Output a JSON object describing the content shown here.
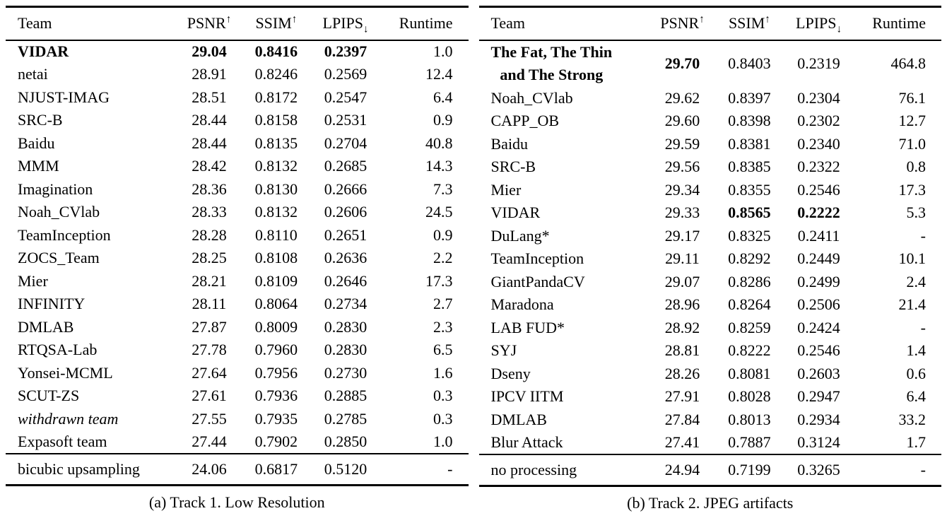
{
  "colors": {
    "text": "#000000",
    "background": "#ffffff"
  },
  "tables": [
    {
      "caption": "(a) Track 1. Low Resolution",
      "columns": [
        {
          "label": "Team",
          "arrow": "",
          "arrow_pos": ""
        },
        {
          "label": "PSNR",
          "arrow": "↑",
          "arrow_pos": "sup"
        },
        {
          "label": "SSIM",
          "arrow": "↑",
          "arrow_pos": "sup"
        },
        {
          "label": "LPIPS",
          "arrow": "↓",
          "arrow_pos": "sub"
        },
        {
          "label": "Runtime",
          "arrow": "",
          "arrow_pos": ""
        }
      ],
      "rows": [
        {
          "team": "VIDAR",
          "psnr": "29.04",
          "ssim": "0.8416",
          "lpips": "0.2397",
          "runtime": "1.0",
          "bold": [
            "team",
            "psnr",
            "ssim",
            "lpips"
          ]
        },
        {
          "team": "netai",
          "psnr": "28.91",
          "ssim": "0.8246",
          "lpips": "0.2569",
          "runtime": "12.4"
        },
        {
          "team": "NJUST-IMAG",
          "psnr": "28.51",
          "ssim": "0.8172",
          "lpips": "0.2547",
          "runtime": "6.4"
        },
        {
          "team": "SRC-B",
          "psnr": "28.44",
          "ssim": "0.8158",
          "lpips": "0.2531",
          "runtime": "0.9"
        },
        {
          "team": "Baidu",
          "psnr": "28.44",
          "ssim": "0.8135",
          "lpips": "0.2704",
          "runtime": "40.8"
        },
        {
          "team": "MMM",
          "psnr": "28.42",
          "ssim": "0.8132",
          "lpips": "0.2685",
          "runtime": "14.3"
        },
        {
          "team": "Imagination",
          "psnr": "28.36",
          "ssim": "0.8130",
          "lpips": "0.2666",
          "runtime": "7.3"
        },
        {
          "team": "Noah_CVlab",
          "psnr": "28.33",
          "ssim": "0.8132",
          "lpips": "0.2606",
          "runtime": "24.5"
        },
        {
          "team": "TeamInception",
          "psnr": "28.28",
          "ssim": "0.8110",
          "lpips": "0.2651",
          "runtime": "0.9"
        },
        {
          "team": "ZOCS_Team",
          "psnr": "28.25",
          "ssim": "0.8108",
          "lpips": "0.2636",
          "runtime": "2.2"
        },
        {
          "team": "Mier",
          "psnr": "28.21",
          "ssim": "0.8109",
          "lpips": "0.2646",
          "runtime": "17.3"
        },
        {
          "team": "INFINITY",
          "psnr": "28.11",
          "ssim": "0.8064",
          "lpips": "0.2734",
          "runtime": "2.7"
        },
        {
          "team": "DMLAB",
          "psnr": "27.87",
          "ssim": "0.8009",
          "lpips": "0.2830",
          "runtime": "2.3"
        },
        {
          "team": "RTQSA-Lab",
          "psnr": "27.78",
          "ssim": "0.7960",
          "lpips": "0.2830",
          "runtime": "6.5"
        },
        {
          "team": "Yonsei-MCML",
          "psnr": "27.64",
          "ssim": "0.7956",
          "lpips": "0.2730",
          "runtime": "1.6"
        },
        {
          "team": "SCUT-ZS",
          "psnr": "27.61",
          "ssim": "0.7936",
          "lpips": "0.2885",
          "runtime": "0.3"
        },
        {
          "team": "withdrawn team",
          "psnr": "27.55",
          "ssim": "0.7935",
          "lpips": "0.2785",
          "runtime": "0.3",
          "italic": [
            "team"
          ]
        },
        {
          "team": "Expasoft team",
          "psnr": "27.44",
          "ssim": "0.7902",
          "lpips": "0.2850",
          "runtime": "1.0"
        }
      ],
      "baseline": {
        "team": "bicubic upsampling",
        "psnr": "24.06",
        "ssim": "0.6817",
        "lpips": "0.5120",
        "runtime": "-"
      }
    },
    {
      "caption": "(b) Track 2. JPEG artifacts",
      "columns": [
        {
          "label": "Team",
          "arrow": "",
          "arrow_pos": ""
        },
        {
          "label": "PSNR",
          "arrow": "↑",
          "arrow_pos": "sup"
        },
        {
          "label": "SSIM",
          "arrow": "↑",
          "arrow_pos": "sup"
        },
        {
          "label": "LPIPS",
          "arrow": "↓",
          "arrow_pos": "sub"
        },
        {
          "label": "Runtime",
          "arrow": "",
          "arrow_pos": ""
        }
      ],
      "rows": [
        {
          "team": "The Fat, The Thin\nand The Strong",
          "psnr": "29.70",
          "ssim": "0.8403",
          "lpips": "0.2319",
          "runtime": "464.8",
          "bold": [
            "team",
            "psnr"
          ]
        },
        {
          "team": "Noah_CVlab",
          "psnr": "29.62",
          "ssim": "0.8397",
          "lpips": "0.2304",
          "runtime": "76.1"
        },
        {
          "team": "CAPP_OB",
          "psnr": "29.60",
          "ssim": "0.8398",
          "lpips": "0.2302",
          "runtime": "12.7"
        },
        {
          "team": "Baidu",
          "psnr": "29.59",
          "ssim": "0.8381",
          "lpips": "0.2340",
          "runtime": "71.0"
        },
        {
          "team": "SRC-B",
          "psnr": "29.56",
          "ssim": "0.8385",
          "lpips": "0.2322",
          "runtime": "0.8"
        },
        {
          "team": "Mier",
          "psnr": "29.34",
          "ssim": "0.8355",
          "lpips": "0.2546",
          "runtime": "17.3"
        },
        {
          "team": "VIDAR",
          "psnr": "29.33",
          "ssim": "0.8565",
          "lpips": "0.2222",
          "runtime": "5.3",
          "bold": [
            "ssim",
            "lpips"
          ]
        },
        {
          "team": "DuLang*",
          "psnr": "29.17",
          "ssim": "0.8325",
          "lpips": "0.2411",
          "runtime": "-"
        },
        {
          "team": "TeamInception",
          "psnr": "29.11",
          "ssim": "0.8292",
          "lpips": "0.2449",
          "runtime": "10.1"
        },
        {
          "team": "GiantPandaCV",
          "psnr": "29.07",
          "ssim": "0.8286",
          "lpips": "0.2499",
          "runtime": "2.4"
        },
        {
          "team": "Maradona",
          "psnr": "28.96",
          "ssim": "0.8264",
          "lpips": "0.2506",
          "runtime": "21.4"
        },
        {
          "team": "LAB FUD*",
          "psnr": "28.92",
          "ssim": "0.8259",
          "lpips": "0.2424",
          "runtime": "-"
        },
        {
          "team": "SYJ",
          "psnr": "28.81",
          "ssim": "0.8222",
          "lpips": "0.2546",
          "runtime": "1.4"
        },
        {
          "team": "Dseny",
          "psnr": "28.26",
          "ssim": "0.8081",
          "lpips": "0.2603",
          "runtime": "0.6"
        },
        {
          "team": "IPCV IITM",
          "psnr": "27.91",
          "ssim": "0.8028",
          "lpips": "0.2947",
          "runtime": "6.4"
        },
        {
          "team": "DMLAB",
          "psnr": "27.84",
          "ssim": "0.8013",
          "lpips": "0.2934",
          "runtime": "33.2"
        },
        {
          "team": "Blur Attack",
          "psnr": "27.41",
          "ssim": "0.7887",
          "lpips": "0.3124",
          "runtime": "1.7"
        }
      ],
      "baseline": {
        "team": "no processing",
        "psnr": "24.94",
        "ssim": "0.7199",
        "lpips": "0.3265",
        "runtime": "-"
      }
    }
  ]
}
